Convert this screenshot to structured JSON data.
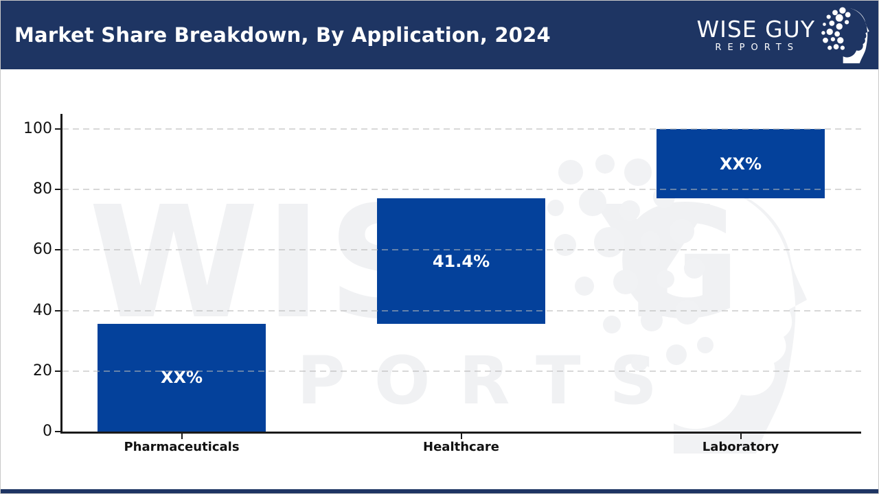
{
  "header": {
    "title": "Market Share Breakdown, By Application, 2024",
    "logo": {
      "line1": "WISE GUY",
      "line2": "REPORTS"
    },
    "bg_color": "#1e3563"
  },
  "watermark": {
    "line1": "WISE G",
    "line1b": "Y",
    "line2": "REPORTS"
  },
  "chart_data": {
    "type": "bar",
    "variant": "cumulative-waterfall",
    "title": "Market Share Breakdown, By Application, 2024",
    "categories": [
      "Pharmaceuticals",
      "Healthcare",
      "Laboratory"
    ],
    "segments": [
      {
        "category": "Pharmaceuticals",
        "start": 0,
        "end": 35.6,
        "value_label": "XX%"
      },
      {
        "category": "Healthcare",
        "start": 35.6,
        "end": 77.0,
        "value_label": "41.4%"
      },
      {
        "category": "Laboratory",
        "start": 77.0,
        "end": 100,
        "value_label": "XX%"
      }
    ],
    "y_ticks": [
      0,
      20,
      40,
      60,
      80,
      100
    ],
    "ylim": [
      0,
      100
    ],
    "grid": {
      "horizontal": true,
      "style": "dashed"
    },
    "bar_color": "#04419b",
    "axis_color": "#1a1a1a"
  }
}
